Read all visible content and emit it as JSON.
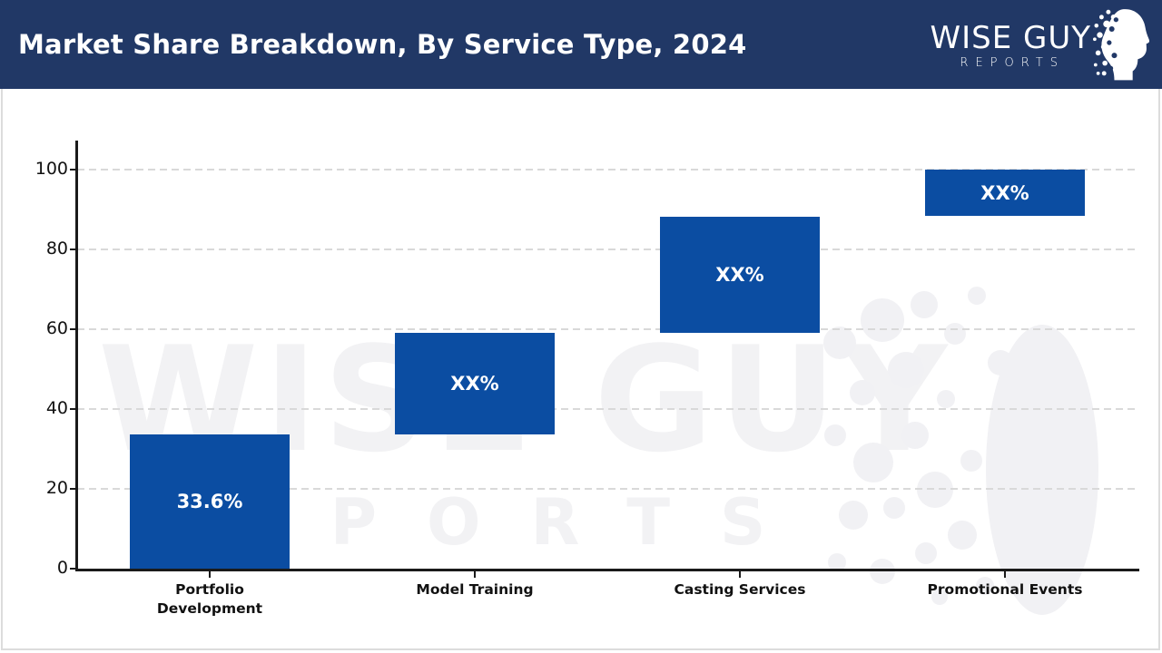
{
  "header": {
    "title": "Market Share Breakdown, By Service Type, 2024",
    "logo": {
      "line1": "WISE GUY",
      "line2": "REPORTS"
    },
    "background": "#213866"
  },
  "watermark": {
    "line1": "WISE GUY",
    "line2": "REPORTS"
  },
  "chart_data": {
    "type": "bar",
    "subtype": "waterfall-floating-bars",
    "title": "Market Share Breakdown, By Service Type, 2024",
    "categories": [
      "Portfolio Development",
      "Model Training",
      "Casting Services",
      "Promotional Events"
    ],
    "category_lines": [
      [
        "Portfolio",
        "Development"
      ],
      [
        "Model Training"
      ],
      [
        "Casting Services"
      ],
      [
        "Promotional Events"
      ]
    ],
    "segments": [
      {
        "category": "Portfolio Development",
        "start": 0,
        "end": 33.6,
        "label": "33.6%"
      },
      {
        "category": "Model Training",
        "start": 33.6,
        "end": 59.0,
        "label": "XX%"
      },
      {
        "category": "Casting Services",
        "start": 59.0,
        "end": 88.2,
        "label": "XX%"
      },
      {
        "category": "Promotional Events",
        "start": 88.3,
        "end": 100,
        "label": "XX%"
      }
    ],
    "yticks": [
      0,
      20,
      40,
      60,
      80,
      100
    ],
    "ytick_labels": [
      "0",
      "20",
      "40",
      "60",
      "80",
      "100"
    ],
    "ylim": [
      0,
      105
    ],
    "xlabel": "",
    "ylabel": "",
    "bar_color": "#0b4da2",
    "bar_label_color": "#ffffff",
    "grid": "horizontal-dashed",
    "legend": "none"
  }
}
